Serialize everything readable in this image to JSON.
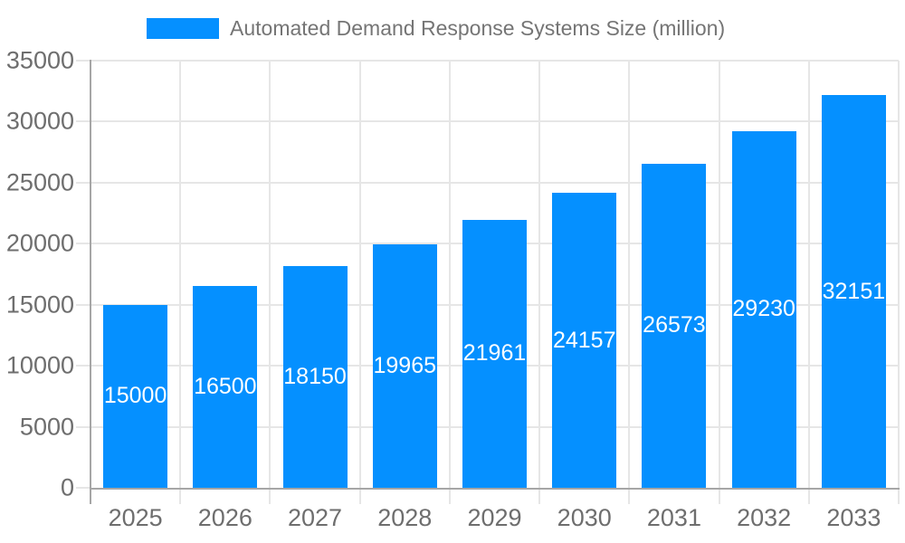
{
  "chart_data": {
    "type": "bar",
    "title": "Automated Demand Response Systems Size (million)",
    "xlabel": "",
    "ylabel": "",
    "categories": [
      "2025",
      "2026",
      "2027",
      "2028",
      "2029",
      "2030",
      "2031",
      "2032",
      "2033"
    ],
    "values": [
      15000,
      16500,
      18150,
      19965,
      21961,
      24157,
      26573,
      29230,
      32151
    ],
    "value_labels": [
      "15000",
      "16500",
      "18150",
      "19965",
      "21961",
      "24157",
      "26573",
      "29230",
      "32151"
    ],
    "ylim": [
      0,
      35000
    ],
    "y_ticks": [
      0,
      5000,
      10000,
      15000,
      20000,
      25000,
      30000,
      35000
    ],
    "grid": "on",
    "legend_position": "top",
    "colors": {
      "bar": "#0590FF",
      "value_label": "#FFFFFF",
      "axis_label": "#6E6E6E",
      "legend_text": "#757575",
      "grid": "#E6E6E6",
      "axis_line": "#A6A6A6",
      "background": "#FFFFFF"
    }
  }
}
